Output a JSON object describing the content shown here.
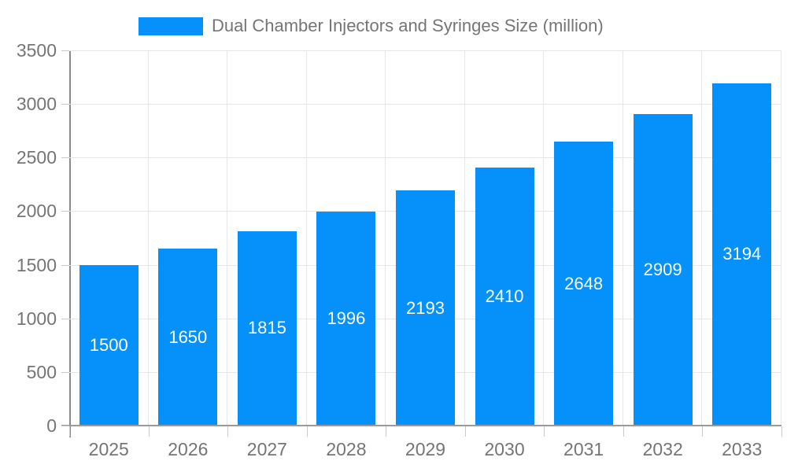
{
  "chart_data": {
    "type": "bar",
    "legend": {
      "label": "Dual Chamber Injectors and Syringes Size (million)",
      "position": "top"
    },
    "categories": [
      "2025",
      "2026",
      "2027",
      "2028",
      "2029",
      "2030",
      "2031",
      "2032",
      "2033"
    ],
    "values": [
      1500,
      1650,
      1815,
      1996,
      2193,
      2410,
      2648,
      2909,
      3194
    ],
    "value_labels": [
      "1500",
      "1650",
      "1815",
      "1996",
      "2193",
      "2410",
      "2648",
      "2909",
      "3194"
    ],
    "y_tick_labels": [
      "0",
      "500",
      "1000",
      "1500",
      "2000",
      "2500",
      "3000",
      "3500"
    ],
    "xlabel": "",
    "ylabel": "",
    "ylim": [
      0,
      3500
    ],
    "ytick_step": 500,
    "grid": true,
    "value_label_position": "inside-center",
    "colors": {
      "bar": "#0590FA",
      "value_label": "#FFFFFF",
      "axis_text": "#757575",
      "gridline": "#E6E6E6",
      "axis_line": "#9A9A9A",
      "tick": "#C9C9C9",
      "background": "#FFFFFF"
    }
  }
}
